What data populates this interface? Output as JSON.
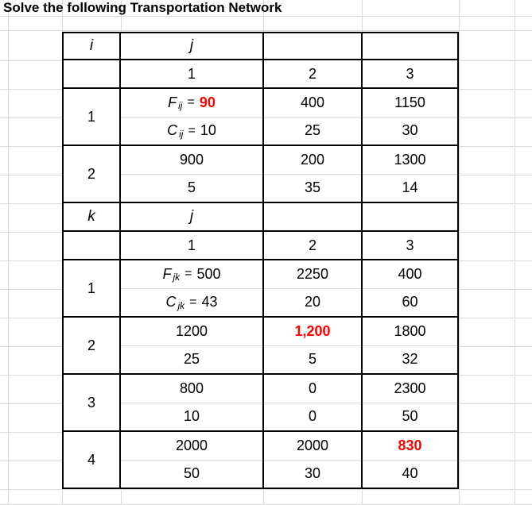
{
  "title": "Solve the following Transportation Network",
  "colors": {
    "highlight_red": "#ff0000",
    "grid_line": "#d9d9d9",
    "table_border": "#000000"
  },
  "tables": [
    {
      "corner": "i",
      "axis": "j",
      "col_labels": [
        "1",
        "2",
        "3"
      ],
      "rows": [
        {
          "label": "1",
          "cells": [
            {
              "top": {
                "var": "F",
                "sub": "ij",
                "eq": "=",
                "val": "90",
                "red": true
              },
              "bot": {
                "var": "C",
                "sub": "ij",
                "eq": "=",
                "val": "10"
              }
            },
            {
              "top": {
                "val": "400"
              },
              "bot": {
                "val": "25"
              }
            },
            {
              "top": {
                "val": "1150"
              },
              "bot": {
                "val": "30"
              }
            }
          ]
        },
        {
          "label": "2",
          "cells": [
            {
              "top": {
                "val": "900"
              },
              "bot": {
                "val": "5"
              }
            },
            {
              "top": {
                "val": "200"
              },
              "bot": {
                "val": "35"
              }
            },
            {
              "top": {
                "val": "1300"
              },
              "bot": {
                "val": "14"
              }
            }
          ]
        }
      ]
    },
    {
      "corner": "k",
      "axis": "j",
      "col_labels": [
        "1",
        "2",
        "3"
      ],
      "rows": [
        {
          "label": "1",
          "cells": [
            {
              "top": {
                "var": "F",
                "sub": "jk",
                "eq": "=",
                "val": "500"
              },
              "bot": {
                "var": "C",
                "sub": "jk",
                "eq": "=",
                "val": "43"
              }
            },
            {
              "top": {
                "val": "2250"
              },
              "bot": {
                "val": "20"
              }
            },
            {
              "top": {
                "val": "400"
              },
              "bot": {
                "val": "60"
              }
            }
          ]
        },
        {
          "label": "2",
          "cells": [
            {
              "top": {
                "val": "1200"
              },
              "bot": {
                "val": "25"
              }
            },
            {
              "top": {
                "val": "1,200",
                "red": true
              },
              "bot": {
                "val": "5"
              }
            },
            {
              "top": {
                "val": "1800"
              },
              "bot": {
                "val": "32"
              }
            }
          ]
        },
        {
          "label": "3",
          "cells": [
            {
              "top": {
                "val": "800"
              },
              "bot": {
                "val": "10"
              }
            },
            {
              "top": {
                "val": "0"
              },
              "bot": {
                "val": "0"
              }
            },
            {
              "top": {
                "val": "2300"
              },
              "bot": {
                "val": "50"
              }
            }
          ]
        },
        {
          "label": "4",
          "cells": [
            {
              "top": {
                "val": "2000"
              },
              "bot": {
                "val": "50"
              }
            },
            {
              "top": {
                "val": "2000"
              },
              "bot": {
                "val": "30"
              }
            },
            {
              "top": {
                "val": "830",
                "red": true
              },
              "bot": {
                "val": "40"
              }
            }
          ]
        }
      ]
    }
  ]
}
